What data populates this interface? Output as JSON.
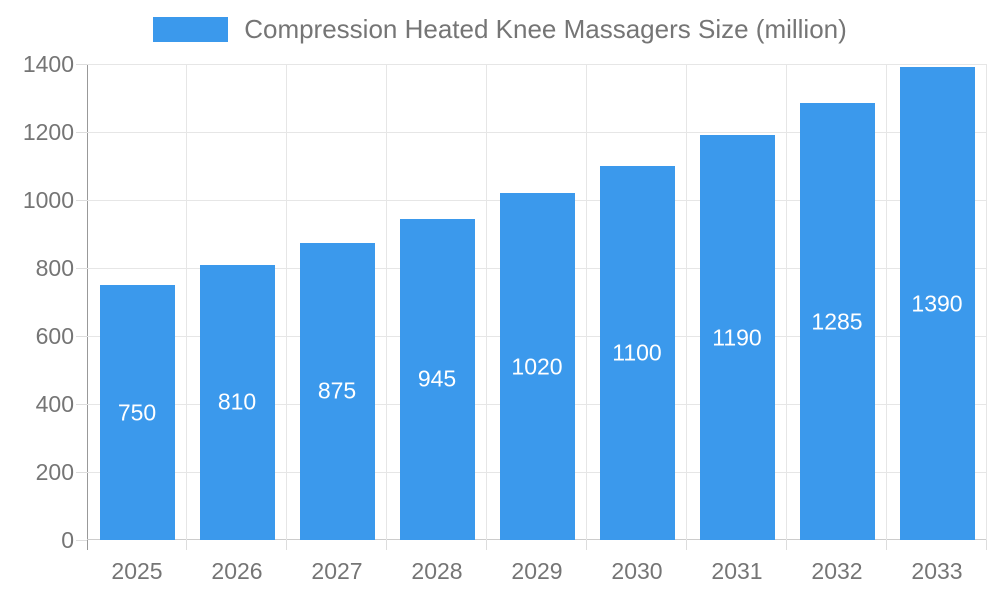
{
  "legend": {
    "label": "Compression Heated Knee Massagers Size (million)"
  },
  "chart_data": {
    "type": "bar",
    "title": "Compression Heated Knee Massagers Size (million)",
    "categories": [
      "2025",
      "2026",
      "2027",
      "2028",
      "2029",
      "2030",
      "2031",
      "2032",
      "2033"
    ],
    "values": [
      750,
      810,
      875,
      945,
      1020,
      1100,
      1190,
      1285,
      1390
    ],
    "series_name": "Compression Heated Knee Massagers Size (million)",
    "xlabel": "",
    "ylabel": "",
    "ylim": [
      0,
      1400
    ],
    "yticks": [
      0,
      200,
      400,
      600,
      800,
      1000,
      1200,
      1400
    ],
    "grid": true,
    "legend_position": "top",
    "value_labels": "inside-center-white",
    "colors": {
      "bar": "#3b99ec",
      "value_label": "#ffffff",
      "axis_text": "#757575",
      "gridline": "#e6e6e6",
      "axis_line": "#999999",
      "baseline": "#cccccc"
    }
  }
}
